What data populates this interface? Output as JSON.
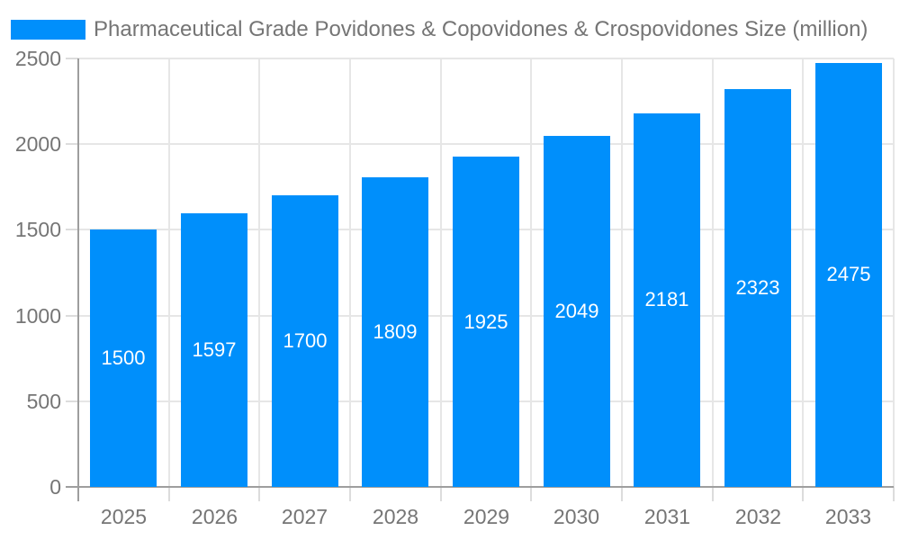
{
  "chart_data": {
    "type": "bar",
    "title": "Pharmaceutical Grade Povidones & Copovidones & Crospovidones Size (million)",
    "categories": [
      "2025",
      "2026",
      "2027",
      "2028",
      "2029",
      "2030",
      "2031",
      "2032",
      "2033"
    ],
    "series": [
      {
        "name": "Pharmaceutical Grade Povidones & Copovidones & Crospovidones Size (million)",
        "values": [
          1500,
          1597,
          1700,
          1809,
          1925,
          2049,
          2181,
          2323,
          2475
        ]
      }
    ],
    "value_labels": [
      1500,
      1597,
      1700,
      1809,
      1925,
      2049,
      2181,
      2323,
      2475
    ],
    "xlabel": "",
    "ylabel": "",
    "ylim": [
      0,
      2500
    ],
    "y_ticks": [
      0,
      500,
      1000,
      1500,
      2000,
      2500
    ],
    "grid": true,
    "legend_position": "top-left",
    "value_label_position": "inside-center",
    "colors": {
      "series": "#008FFB",
      "grid": "#e6e6e6",
      "axis": "#9e9e9e",
      "tick": "#dcdcdc",
      "text": "#757575",
      "value_label": "#ffffff",
      "background": "#ffffff"
    }
  }
}
